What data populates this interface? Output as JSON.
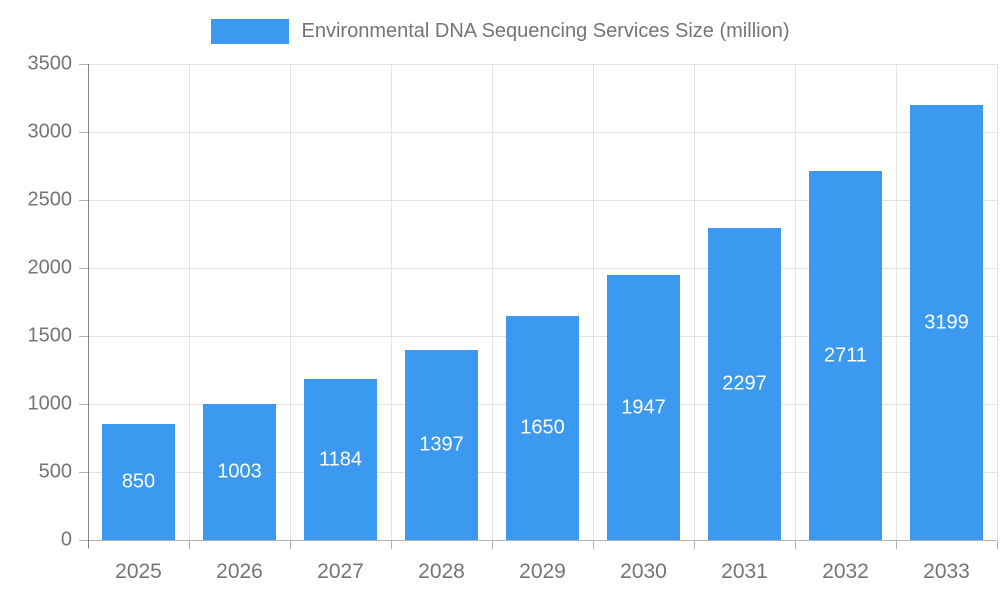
{
  "chart_data": {
    "type": "bar",
    "title": "Environmental DNA Sequencing Services Size (million)",
    "categories": [
      "2025",
      "2026",
      "2027",
      "2028",
      "2029",
      "2030",
      "2031",
      "2032",
      "2033"
    ],
    "values": [
      850,
      1003,
      1184,
      1397,
      1650,
      1947,
      2297,
      2711,
      3199
    ],
    "xlabel": "",
    "ylabel": "",
    "ylim": [
      0,
      3500
    ],
    "ytick_step": 500,
    "y_tick_labels": [
      "0",
      "500",
      "1000",
      "1500",
      "2000",
      "2500",
      "3000",
      "3500"
    ],
    "grid": true,
    "legend_position": "top",
    "value_labels_shown": true,
    "colors": {
      "bar": "#3B99F0",
      "value_label_text": "#ffffff",
      "axis_text": "#757575",
      "gridline": "#e3e3e3",
      "y_axis_line": "#848484",
      "x_axis_line": "#b3b3b3"
    }
  }
}
